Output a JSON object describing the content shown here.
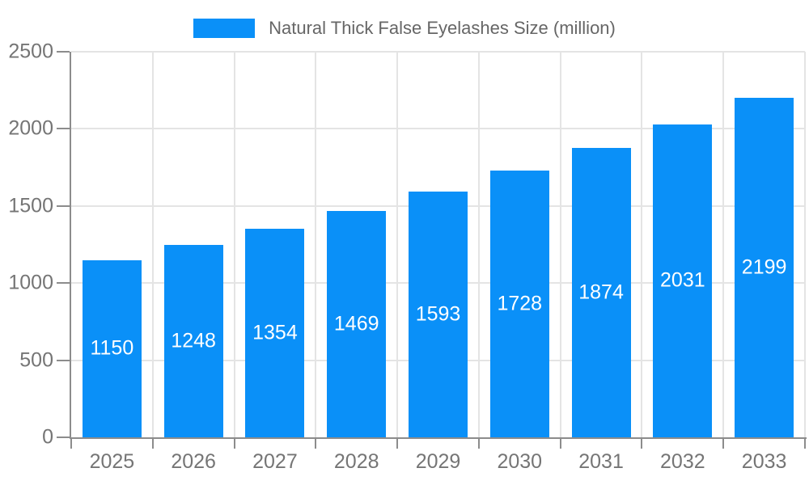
{
  "legend": {
    "label": "Natural Thick False Eyelashes Size (million)",
    "position": "top"
  },
  "chart_data": {
    "type": "bar",
    "title": "Natural Thick False Eyelashes Size (million)",
    "categories": [
      "2025",
      "2026",
      "2027",
      "2028",
      "2029",
      "2030",
      "2031",
      "2032",
      "2033"
    ],
    "series": [
      {
        "name": "Natural Thick False Eyelashes Size (million)",
        "values": [
          1150,
          1248,
          1354,
          1469,
          1593,
          1728,
          1874,
          2031,
          2199
        ]
      }
    ],
    "xlabel": "",
    "ylabel": "",
    "ylim": [
      0,
      2500
    ],
    "yticks": [
      0,
      500,
      1000,
      1500,
      2000,
      2500
    ],
    "grid": true,
    "legend_position": "top",
    "value_labels": "inside-center"
  },
  "colors": {
    "bar_color": "#0a90f8",
    "grid_color": "#e4e4e4",
    "axis_color": "#8c8c8c",
    "text_color": "#757575",
    "title_color": "#666666",
    "value_label_color": "#ffffff",
    "background": "#ffffff"
  }
}
